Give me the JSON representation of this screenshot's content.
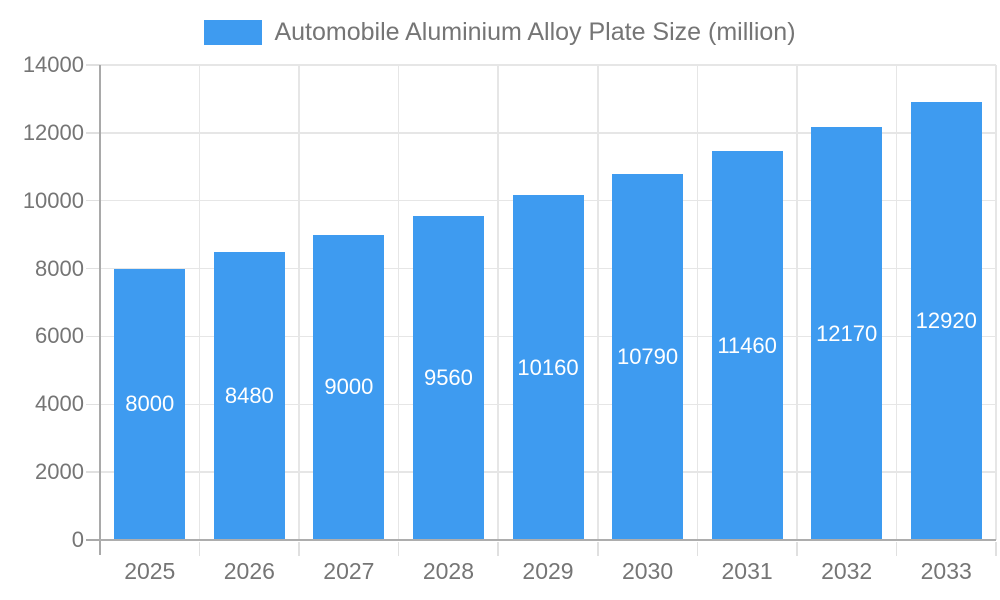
{
  "legend": {
    "label": "Automobile Aluminium Alloy Plate Size (million)"
  },
  "chart_data": {
    "type": "bar",
    "title": "Automobile Aluminium Alloy Plate Size (million)",
    "categories": [
      "2025",
      "2026",
      "2027",
      "2028",
      "2029",
      "2030",
      "2031",
      "2032",
      "2033"
    ],
    "values": [
      8000,
      8480,
      9000,
      9560,
      10160,
      10790,
      11460,
      12170,
      12920
    ],
    "xlabel": "",
    "ylabel": "",
    "ylim": [
      0,
      14000
    ],
    "ytick_step": 2000,
    "ytick_labels": [
      "0",
      "2000",
      "4000",
      "6000",
      "8000",
      "10000",
      "12000",
      "14000"
    ],
    "grid": true,
    "legend_position": "top",
    "colors": {
      "bar": "#3e9bf0",
      "bar_value_label": "#ffffff",
      "axis": "#a9a9a9",
      "gridline": "#e6e6e6",
      "tick": "#e0e0e0",
      "text": "#757575"
    }
  }
}
